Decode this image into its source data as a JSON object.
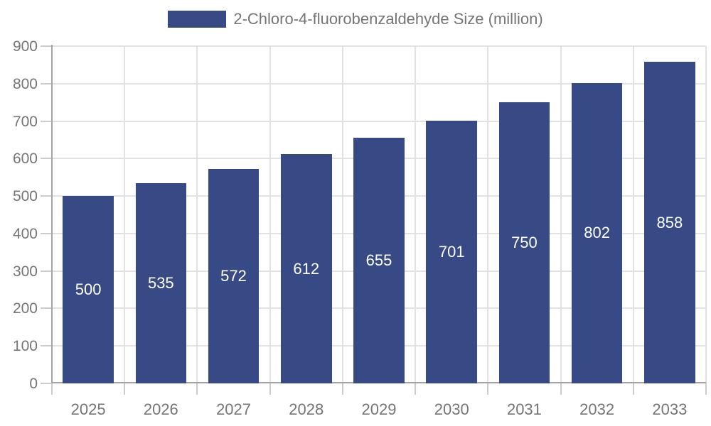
{
  "chart_data": {
    "type": "bar",
    "title": "2-Chloro-4-fluorobenzaldehyde Size (million)",
    "categories": [
      "2025",
      "2026",
      "2027",
      "2028",
      "2029",
      "2030",
      "2031",
      "2032",
      "2033"
    ],
    "values": [
      500,
      535,
      572,
      612,
      655,
      701,
      750,
      802,
      858
    ],
    "xlabel": "",
    "ylabel": "",
    "ylim": [
      0,
      900
    ],
    "yticks": [
      0,
      100,
      200,
      300,
      400,
      500,
      600,
      700,
      800,
      900
    ],
    "grid": "on",
    "legend_position": "top-center",
    "value_labels": "inside-center",
    "colors": {
      "bar": "#374a85",
      "axis_line": "#a3a3a3",
      "grid_line": "#e2e2e2",
      "tick_line": "#cccccc",
      "axis_text": "#757575",
      "legend_text": "#757575",
      "value_text": "#ffffff",
      "background": "#ffffff"
    }
  }
}
